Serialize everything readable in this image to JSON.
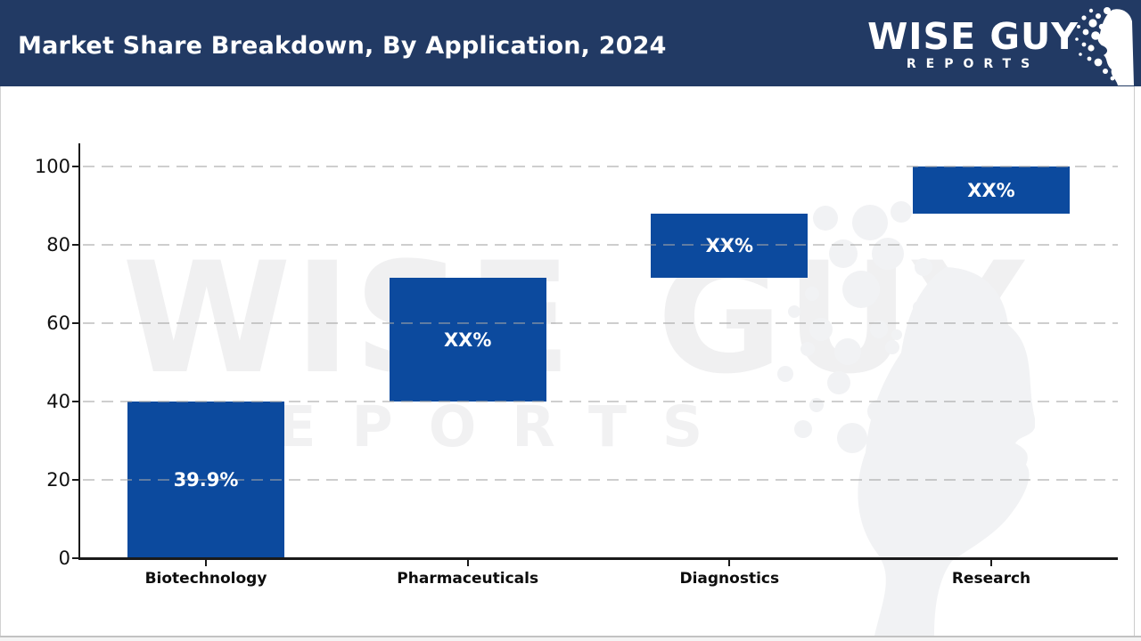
{
  "header": {
    "title": "Market Share Breakdown, By Application, 2024",
    "logo": {
      "line1": "WISE GUY",
      "line2": "REPORTS"
    }
  },
  "watermark": {
    "line1": "WISE GUY",
    "line2": "REPORTS"
  },
  "chart_data": {
    "type": "bar",
    "subtype": "waterfall",
    "title": "Market Share Breakdown, By Application, 2024",
    "categories": [
      "Biotechnology",
      "Pharmaceuticals",
      "Diagnostics",
      "Research"
    ],
    "segments": [
      {
        "category": "Biotechnology",
        "start": 0,
        "end": 39.9,
        "label": "39.9%"
      },
      {
        "category": "Pharmaceuticals",
        "start": 39.9,
        "end": 71.5,
        "label": "XX%"
      },
      {
        "category": "Diagnostics",
        "start": 71.5,
        "end": 87.9,
        "label": "XX%"
      },
      {
        "category": "Research",
        "start": 87.9,
        "end": 100,
        "label": "XX%"
      }
    ],
    "xlabel": "",
    "ylabel": "",
    "ylim": [
      0,
      105
    ],
    "yticks": [
      0,
      20,
      40,
      60,
      80,
      100
    ],
    "grid": "dashed horizontal, drawn over bars",
    "legend": "none",
    "bar_color": "#0C4A9E",
    "bar_label_color": "#FFFFFF"
  },
  "colors": {
    "header_bg": "#223A64",
    "bar": "#0C4A9E",
    "axis": "#1A1A1A",
    "gridline": "#D6D6D6",
    "watermark": "#F0F0F1",
    "page_bg": "#FFFFFF"
  }
}
